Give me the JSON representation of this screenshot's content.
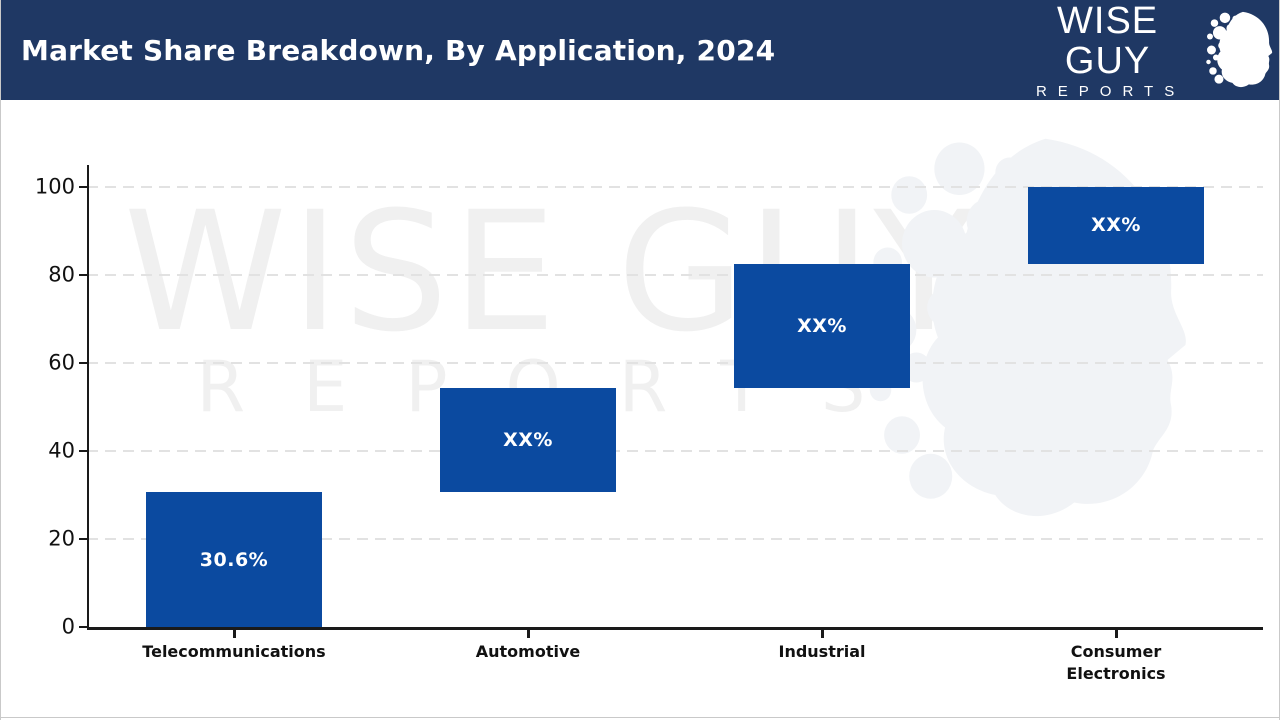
{
  "header": {
    "title": "Market Share Breakdown, By Application, 2024",
    "bg_color": "#1f3864",
    "logo": {
      "line1": "WISE GUY",
      "line2": "REPORTS",
      "icon": "dotted-face-profile"
    }
  },
  "watermark": {
    "line1": "WISE GUY",
    "line2": "REPORTS",
    "icon": "dotted-face-profile",
    "color": "#f0f0f0"
  },
  "chart_data": {
    "type": "bar",
    "subtype": "waterfall-floating-bars",
    "title": "Market Share Breakdown, By Application, 2024",
    "categories": [
      "Telecommunications",
      "Automotive",
      "Industrial",
      "Consumer Electronics"
    ],
    "segments": [
      {
        "category": "Telecommunications",
        "start": 0,
        "end": 30.6,
        "value": 30.6,
        "label": "30.6%"
      },
      {
        "category": "Automotive",
        "start": 30.6,
        "end": 54.4,
        "value": 23.8,
        "label": "XX%"
      },
      {
        "category": "Industrial",
        "start": 54.4,
        "end": 82.6,
        "value": 28.2,
        "label": "XX%"
      },
      {
        "category": "Consumer Electronics",
        "start": 82.6,
        "end": 100,
        "value": 17.4,
        "label": "XX%"
      }
    ],
    "yticks": [
      0,
      20,
      40,
      60,
      80,
      100
    ],
    "ylim": [
      0,
      105
    ],
    "xlabel": "",
    "ylabel": "",
    "grid": "dashed-horizontal",
    "legend": "none",
    "bar_color": "#0b4aa0",
    "label_color": "#ffffff",
    "axis_color": "#1a1a1a",
    "grid_color": "#e2e2e2"
  }
}
